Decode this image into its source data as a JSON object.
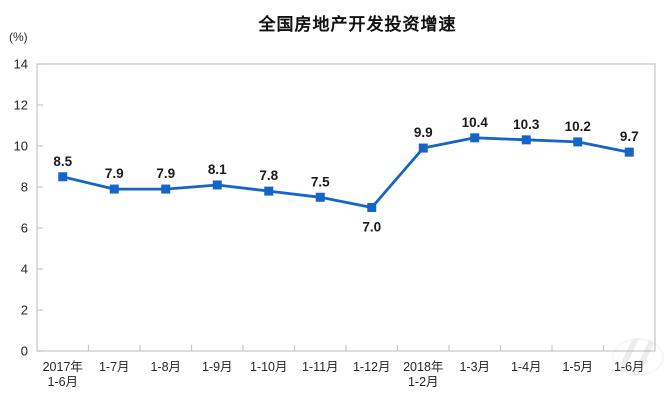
{
  "page": {
    "background": "#ffffff"
  },
  "chart_data": {
    "type": "line",
    "title": "全国房地产开发投资增速",
    "unit_label": "(%)",
    "categories": [
      [
        "2017年",
        "1-6月"
      ],
      [
        "1-7月"
      ],
      [
        "1-8月"
      ],
      [
        "1-9月"
      ],
      [
        "1-10月"
      ],
      [
        "1-11月"
      ],
      [
        "1-12月"
      ],
      [
        "2018年",
        "1-2月"
      ],
      [
        "1-3月"
      ],
      [
        "1-4月"
      ],
      [
        "1-5月"
      ],
      [
        "1-6月"
      ]
    ],
    "series": [
      {
        "name": "全国房地产开发投资增速",
        "values": [
          8.5,
          7.9,
          7.9,
          8.1,
          7.8,
          7.5,
          7.0,
          9.9,
          10.4,
          10.3,
          10.2,
          9.7
        ]
      }
    ],
    "data_labels": [
      "8.5",
      "7.9",
      "7.9",
      "8.1",
      "7.8",
      "7.5",
      "7.0",
      "9.9",
      "10.4",
      "10.3",
      "10.2",
      "9.7"
    ],
    "label_below_indices": [
      6
    ],
    "ylim": [
      0,
      14
    ],
    "yticks": [
      0,
      2,
      4,
      6,
      8,
      10,
      12,
      14
    ],
    "grid": false,
    "legend_position": "none",
    "marker": "square",
    "colors": {
      "series": "#1565C8",
      "frame": "#C6C6C6",
      "tick_text": "#262626",
      "label_text": "#1A1A1A",
      "title_text": "#111111"
    }
  }
}
